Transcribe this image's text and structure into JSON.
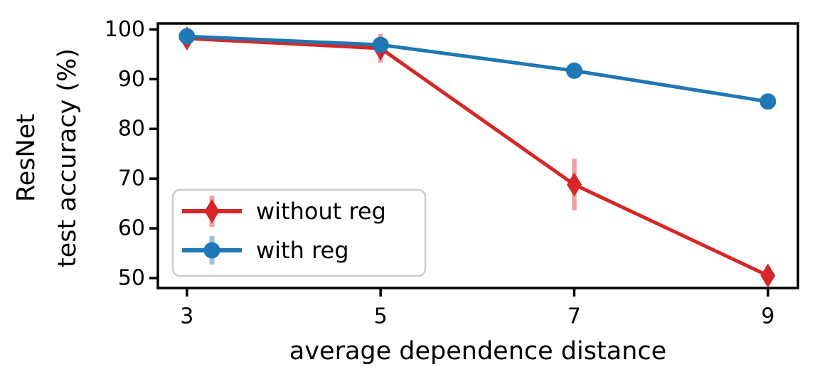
{
  "figure": {
    "background": "#ffffff",
    "ylabel_line1": "ResNet",
    "ylabel_line2": "test accuracy (%)"
  },
  "chart_data": {
    "type": "line",
    "title": "",
    "xlabel": "average dependence distance",
    "ylabel": "ResNet test accuracy (%)",
    "x": [
      3,
      5,
      7,
      9
    ],
    "series": [
      {
        "name": "without reg",
        "color": "#d62728",
        "errorbar_color": "#eda3a3",
        "marker": "diamond",
        "values": [
          98.2,
          96.2,
          68.8,
          50.5
        ],
        "yerr": [
          0.6,
          2.9,
          5.2,
          0.9
        ]
      },
      {
        "name": "with reg",
        "color": "#1f77b4",
        "errorbar_color": "#9ac2dd",
        "marker": "circle",
        "values": [
          98.6,
          96.9,
          91.7,
          85.5
        ],
        "yerr": [
          0.4,
          0.8,
          0.5,
          0.4
        ]
      }
    ],
    "xticks": [
      3,
      5,
      7,
      9
    ],
    "yticks": [
      50,
      60,
      70,
      80,
      90,
      100
    ],
    "xlim": [
      2.7,
      9.31
    ],
    "ylim": [
      48,
      101.2
    ],
    "grid": false,
    "legend_position": "lower left",
    "axis_color": "#000000"
  }
}
